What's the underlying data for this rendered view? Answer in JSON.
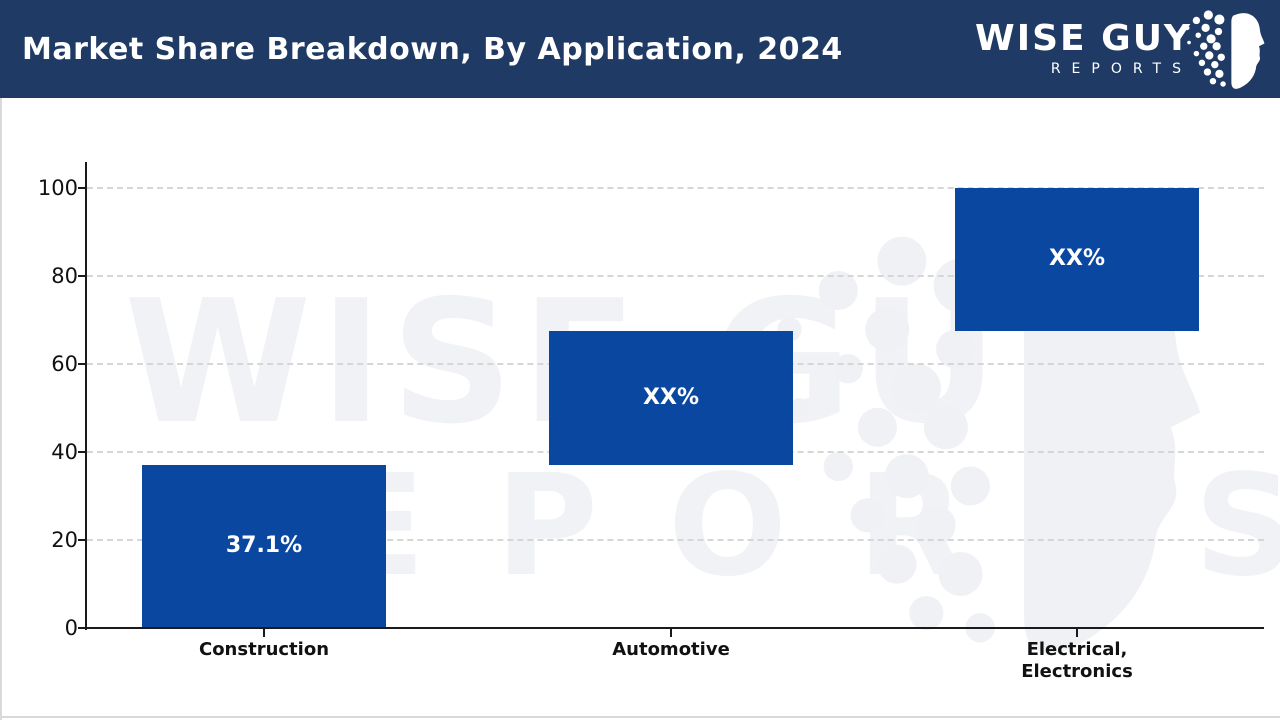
{
  "header": {
    "title": "Market Share Breakdown, By Application, 2024",
    "logo": {
      "brand_line1": "WISE GUY",
      "brand_line2": "REPORTS"
    }
  },
  "watermark": {
    "line1": "WISE GUY",
    "line2": "REPORTS"
  },
  "colors": {
    "header_bg": "#1F3A64",
    "bar_fill": "#0A47A0",
    "bar_label_text": "#FFFFFF",
    "axis": "#1A1A1A",
    "gridline": "#D6D6D6",
    "watermark": "#F1F2F5"
  },
  "chart_data": {
    "type": "bar",
    "subtype": "waterfall",
    "title": "Market Share Breakdown, By Application, 2024",
    "categories": [
      "Construction",
      "Automotive",
      "Electrical,\nElectronics"
    ],
    "segments": [
      {
        "category": "Construction",
        "label": "37.1%",
        "start": 0,
        "end": 37.1
      },
      {
        "category": "Automotive",
        "label": "XX%",
        "start": 37.1,
        "end": 67.5
      },
      {
        "category": "Electrical, Electronics",
        "label": "XX%",
        "start": 67.5,
        "end": 100
      }
    ],
    "ylim": [
      0,
      100
    ],
    "yticks": [
      0,
      20,
      40,
      60,
      80,
      100
    ],
    "grid": "horizontal-dashed",
    "legend": "none",
    "bar_value_labels_inside": true
  }
}
